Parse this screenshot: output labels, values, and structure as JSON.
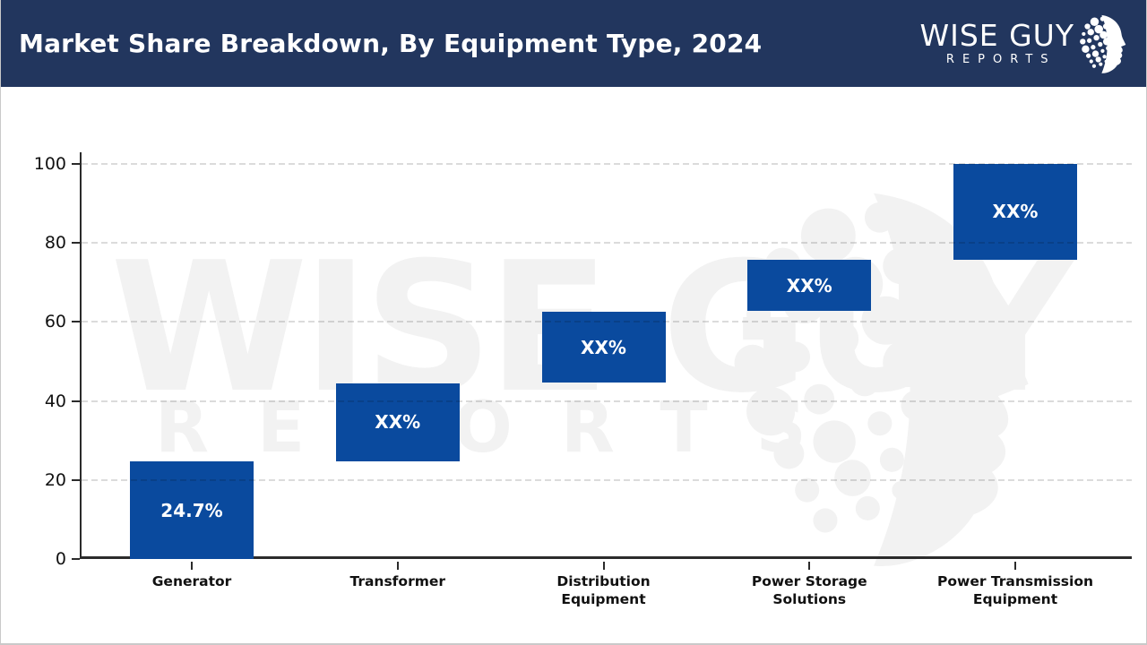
{
  "header": {
    "title": "Market Share Breakdown, By Equipment Type, 2024",
    "logo": {
      "wordmark": "WISE GUY",
      "subtitle": "REPORTS"
    }
  },
  "watermark": {
    "wordmark": "WISE GUY",
    "subtitle": "REPORTS"
  },
  "chart_data": {
    "type": "bar",
    "variant": "waterfall",
    "title": "Market Share Breakdown, By Equipment Type, 2024",
    "categories": [
      "Generator",
      "Transformer",
      "Distribution Equipment",
      "Power Storage Solutions",
      "Power Transmission Equipment"
    ],
    "category_lines": [
      [
        "Generator"
      ],
      [
        "Transformer"
      ],
      [
        "Distribution",
        "Equipment"
      ],
      [
        "Power Storage",
        "Solutions"
      ],
      [
        "Power Transmission",
        "Equipment"
      ]
    ],
    "segments": [
      {
        "category": "Generator",
        "from": 0,
        "to": 24.7,
        "label": "24.7%"
      },
      {
        "category": "Transformer",
        "from": 24.7,
        "to": 44.5,
        "label": "XX%"
      },
      {
        "category": "Distribution Equipment",
        "from": 44.6,
        "to": 62.5,
        "label": "XX%"
      },
      {
        "category": "Power Storage Solutions",
        "from": 62.7,
        "to": 75.8,
        "label": "XX%"
      },
      {
        "category": "Power Transmission Equipment",
        "from": 75.8,
        "to": 100,
        "label": "XX%"
      }
    ],
    "ylim": [
      0,
      100
    ],
    "yticks": [
      0,
      20,
      40,
      60,
      80,
      100
    ],
    "grid": {
      "horizontal": true,
      "style": "dashed"
    },
    "legend": "none",
    "bar_color": "#0a4a9e",
    "bar_label_color": "#ffffff"
  },
  "colors": {
    "header_bg": "#22365e",
    "header_text": "#ffffff",
    "bar": "#0a4a9e",
    "bar_label": "#ffffff",
    "watermark": "#f2f2f2",
    "axis": "#2b2b2b",
    "grid": "#d9d9d9",
    "page_bg": "#ffffff",
    "page_border": "#c9c9c9"
  }
}
